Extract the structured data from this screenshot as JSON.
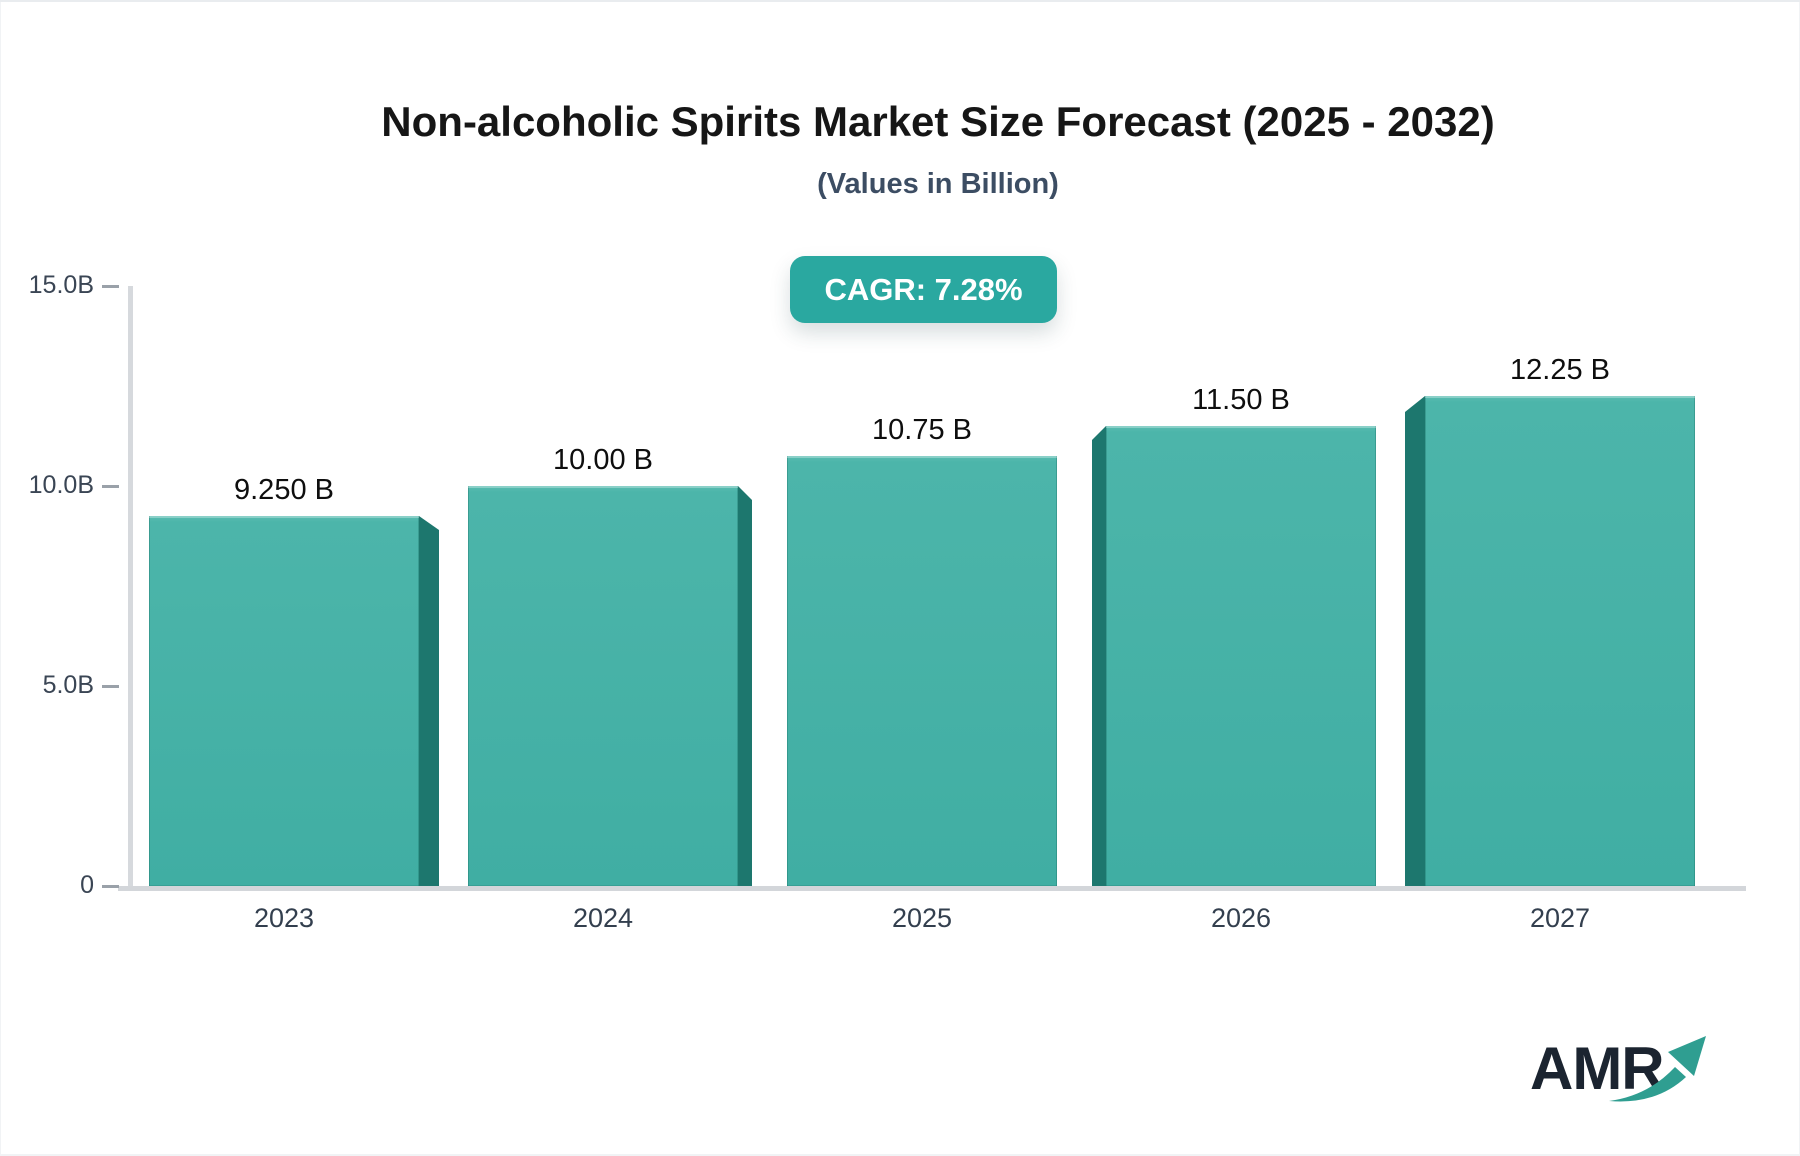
{
  "header": {
    "title": "Non-alcoholic Spirits Market Size Forecast (2025 - 2032)",
    "subtitle": "(Values in Billion)",
    "cagr_label": "CAGR: 7.28%"
  },
  "footer": {
    "logo_text": "AMR"
  },
  "colors": {
    "bar_face": "#4ab4a9",
    "bar_side": "#1d776e",
    "badge_bg": "#2aa8a0",
    "axis_line": "#d5d8dc",
    "tick": "#9aa1a9",
    "axis_label_text": "#3a4554",
    "value_label_text": "#0e0e0e",
    "title_text": "#161616",
    "subtitle_text": "#3c4d63",
    "logo_text": "#1b2430",
    "logo_arrow": "#2f9e91"
  },
  "chart_data": {
    "type": "bar",
    "title": "Non-alcoholic Spirits Market Size Forecast (2025 - 2032)",
    "subtitle": "(Values in Billion)",
    "cagr_label": "CAGR: 7.28%",
    "cagr_value": "7.28%",
    "categories": [
      "2023",
      "2024",
      "2025",
      "2026",
      "2027"
    ],
    "values": [
      9.25,
      10.0,
      10.75,
      11.5,
      12.25
    ],
    "value_labels": [
      "9.250 B",
      "10.00 B",
      "10.75 B",
      "11.50 B",
      "12.25 B"
    ],
    "xlabel": "",
    "ylabel": "",
    "ylim": [
      0,
      15
    ],
    "y_ticks": [
      0,
      5,
      10,
      15
    ],
    "y_tick_labels": [
      "0",
      "5.0B",
      "10.0B",
      "15.0B"
    ],
    "grid": false,
    "legend": "none",
    "bar_style": "3d-beveled, depth side faces toward center bar"
  }
}
